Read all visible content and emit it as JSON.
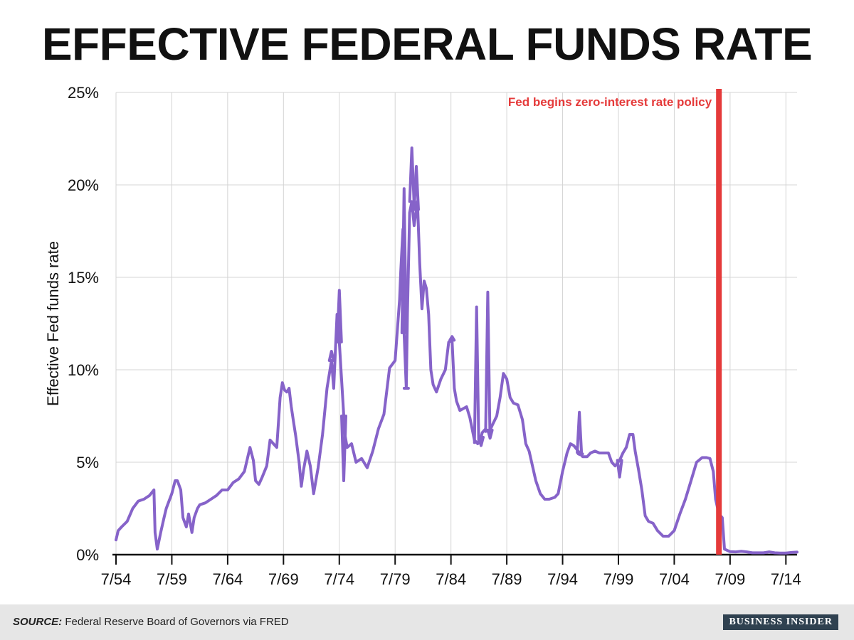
{
  "title": "EFFECTIVE FEDERAL FUNDS RATE",
  "chart_data": {
    "type": "line",
    "title": "EFFECTIVE FEDERAL FUNDS RATE",
    "ylabel": "Effective Fed funds rate",
    "xlabel": "",
    "xlim": [
      1954.5,
      2015.5
    ],
    "ylim": [
      0,
      25
    ],
    "grid": true,
    "x_ticks": [
      {
        "x": 1954.5,
        "label": "7/54"
      },
      {
        "x": 1959.5,
        "label": "7/59"
      },
      {
        "x": 1964.5,
        "label": "7/64"
      },
      {
        "x": 1969.5,
        "label": "7/69"
      },
      {
        "x": 1974.5,
        "label": "7/74"
      },
      {
        "x": 1979.5,
        "label": "7/79"
      },
      {
        "x": 1984.5,
        "label": "7/84"
      },
      {
        "x": 1989.5,
        "label": "7/89"
      },
      {
        "x": 1994.5,
        "label": "7/94"
      },
      {
        "x": 1999.5,
        "label": "7/99"
      },
      {
        "x": 2004.5,
        "label": "7/04"
      },
      {
        "x": 2009.5,
        "label": "7/09"
      },
      {
        "x": 2014.5,
        "label": "7/14"
      }
    ],
    "y_ticks": [
      {
        "y": 0,
        "label": "0%"
      },
      {
        "y": 5,
        "label": "5%"
      },
      {
        "y": 10,
        "label": "10%"
      },
      {
        "y": 15,
        "label": "15%"
      },
      {
        "y": 20,
        "label": "20%"
      },
      {
        "y": 25,
        "label": "25%"
      }
    ],
    "series": [
      {
        "name": "Effective Fed funds rate",
        "color": "#8663c9",
        "x": [
          1954.5,
          1954.7,
          1955.0,
          1955.5,
          1956.0,
          1956.5,
          1957.0,
          1957.5,
          1957.9,
          1958.0,
          1958.2,
          1958.5,
          1958.8,
          1959.0,
          1959.5,
          1959.8,
          1960.0,
          1960.3,
          1960.5,
          1960.8,
          1961.0,
          1961.3,
          1961.5,
          1961.8,
          1962.0,
          1962.5,
          1963.0,
          1963.5,
          1964.0,
          1964.5,
          1965.0,
          1965.5,
          1966.0,
          1966.5,
          1966.8,
          1967.0,
          1967.3,
          1967.6,
          1968.0,
          1968.3,
          1968.6,
          1968.9,
          1969.2,
          1969.4,
          1969.6,
          1969.8,
          1970.0,
          1970.2,
          1970.4,
          1970.6,
          1970.9,
          1971.1,
          1971.3,
          1971.6,
          1971.9,
          1972.2,
          1972.6,
          1973.0,
          1973.4,
          1973.8,
          1974.0,
          1974.3,
          1974.5,
          1974.8,
          1975.0,
          1975.2,
          1975.6,
          1976.0,
          1976.5,
          1977.0,
          1977.5,
          1978.0,
          1978.5,
          1979.0,
          1979.5,
          1979.9,
          1980.0,
          1980.2,
          1980.3,
          1980.5,
          1980.6,
          1980.8,
          1981.0,
          1981.2,
          1981.5,
          1981.7,
          1981.9,
          1982.1,
          1982.3,
          1982.5,
          1982.7,
          1982.9,
          1983.2,
          1983.6,
          1984.0,
          1984.3,
          1984.6,
          1984.8,
          1985.0,
          1985.3,
          1985.6,
          1985.9,
          1986.2,
          1986.6,
          1986.9,
          1987.1,
          1987.3,
          1987.6,
          1987.9,
          1988.2,
          1988.6,
          1988.9,
          1989.2,
          1989.5,
          1989.8,
          1990.1,
          1990.5,
          1990.9,
          1991.2,
          1991.5,
          1991.8,
          1992.1,
          1992.5,
          1992.9,
          1993.3,
          1993.8,
          1994.1,
          1994.5,
          1994.9,
          1995.2,
          1995.5,
          1995.9,
          1996.3,
          1996.7,
          1997.0,
          1997.4,
          1997.8,
          1998.2,
          1998.6,
          1998.9,
          1999.2,
          1999.6,
          1999.9,
          2000.2,
          2000.5,
          2000.8,
          2001.0,
          2001.3,
          2001.6,
          2001.9,
          2002.2,
          2002.6,
          2003.0,
          2003.5,
          2004.0,
          2004.5,
          2005.0,
          2005.5,
          2006.0,
          2006.5,
          2007.0,
          2007.4,
          2007.7,
          2008.0,
          2008.2,
          2008.5,
          2008.8,
          2009.0,
          2009.5,
          2010.0,
          2010.5,
          2011.0,
          2011.5,
          2012.0,
          2012.5,
          2013.0,
          2013.5,
          2014.0,
          2014.5,
          2015.0,
          2015.5
        ],
        "y": [
          0.8,
          1.3,
          1.5,
          1.8,
          2.5,
          2.9,
          3.0,
          3.2,
          3.5,
          1.2,
          0.3,
          1.2,
          2.0,
          2.5,
          3.3,
          4.0,
          4.0,
          3.5,
          2.0,
          1.5,
          2.2,
          1.2,
          2.0,
          2.5,
          2.7,
          2.8,
          3.0,
          3.2,
          3.5,
          3.5,
          3.9,
          4.1,
          4.5,
          5.8,
          5.1,
          4.0,
          3.8,
          4.2,
          4.8,
          6.2,
          6.0,
          5.8,
          8.5,
          9.3,
          8.9,
          8.8,
          9.0,
          8.0,
          7.2,
          6.4,
          5.0,
          3.7,
          4.6,
          5.6,
          4.8,
          3.3,
          4.7,
          6.5,
          9.0,
          10.5,
          9.0,
          13.0,
          11.5,
          8.5,
          6.5,
          5.8,
          6.0,
          5.0,
          5.2,
          4.7,
          5.6,
          6.8,
          7.6,
          10.1,
          10.5,
          13.8,
          15.3,
          17.6,
          12.0,
          9.0,
          13.0,
          18.5,
          19.1,
          17.8,
          19.1,
          15.8,
          13.3,
          14.8,
          14.4,
          13.0,
          10.0,
          9.2,
          8.8,
          9.5,
          10.0,
          11.5,
          11.6,
          9.0,
          8.3,
          7.8,
          7.9,
          8.0,
          7.4,
          6.2,
          6.0,
          6.1,
          6.6,
          6.8,
          6.6,
          7.0,
          7.5,
          8.5,
          9.8,
          9.5,
          8.5,
          8.2,
          8.1,
          7.3,
          6.0,
          5.6,
          4.8,
          4.0,
          3.3,
          3.0,
          3.0,
          3.1,
          3.3,
          4.5,
          5.5,
          6.0,
          5.9,
          5.6,
          5.3,
          5.3,
          5.5,
          5.6,
          5.5,
          5.5,
          5.5,
          5.0,
          4.8,
          5.1,
          5.5,
          5.8,
          6.5,
          6.5,
          5.6,
          4.6,
          3.5,
          2.1,
          1.8,
          1.7,
          1.3,
          1.0,
          1.0,
          1.3,
          2.2,
          3.0,
          4.0,
          5.0,
          5.25,
          5.25,
          5.2,
          4.5,
          3.0,
          2.2,
          2.0,
          0.3,
          0.16,
          0.15,
          0.18,
          0.15,
          0.1,
          0.1,
          0.1,
          0.15,
          0.1,
          0.09,
          0.09,
          0.12,
          0.14
        ]
      }
    ],
    "spikes": [
      {
        "x": 1973.8,
        "y": 11.0
      },
      {
        "x": 1974.5,
        "y": 14.3
      },
      {
        "x": 1974.9,
        "y": 4.0
      },
      {
        "x": 1980.3,
        "y": 19.8
      },
      {
        "x": 1980.5,
        "y": 9.0
      },
      {
        "x": 1981.0,
        "y": 22.0
      },
      {
        "x": 1981.4,
        "y": 21.0
      },
      {
        "x": 1984.6,
        "y": 11.8
      },
      {
        "x": 1986.8,
        "y": 13.4
      },
      {
        "x": 1987.2,
        "y": 5.9
      },
      {
        "x": 1987.8,
        "y": 14.2
      },
      {
        "x": 1988.0,
        "y": 6.3
      },
      {
        "x": 1996.0,
        "y": 7.7
      },
      {
        "x": 1996.1,
        "y": 5.4
      },
      {
        "x": 1999.6,
        "y": 4.2
      }
    ],
    "annotation": {
      "text": "Fed begins zero-interest rate policy",
      "x": 2008.5,
      "color": "#e53a3a"
    }
  },
  "source_label": "SOURCE:",
  "source_text": "Federal Reserve Board of Governors via FRED",
  "brand": "BUSINESS INSIDER"
}
